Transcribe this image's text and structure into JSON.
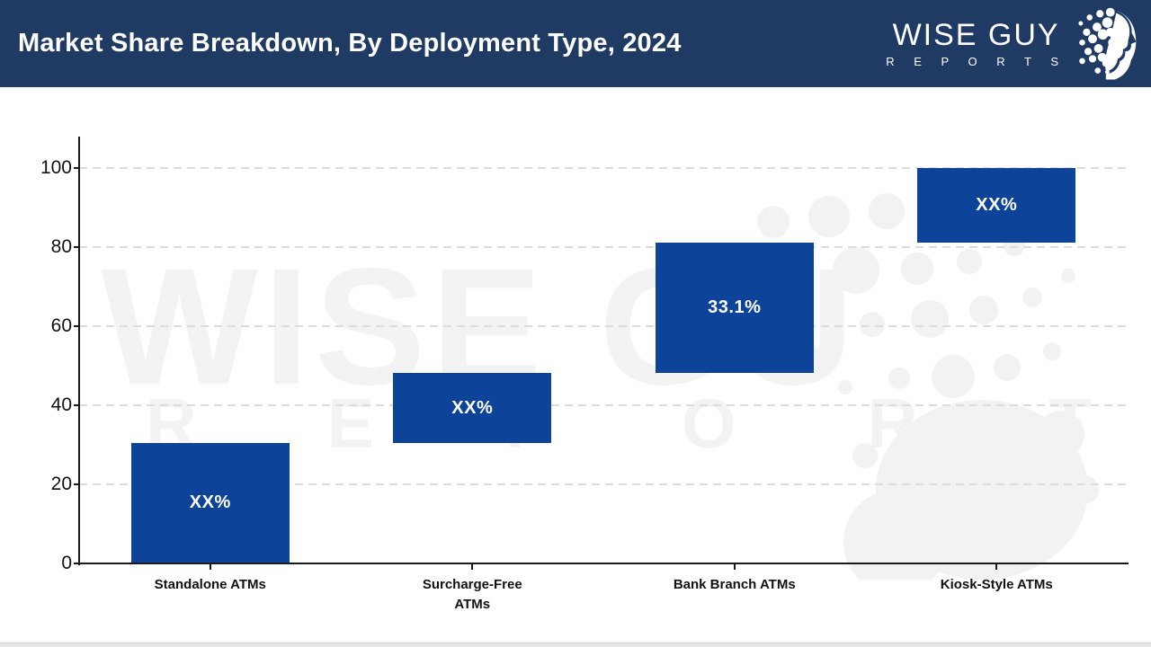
{
  "header": {
    "title": "Market Share Breakdown, By Deployment Type, 2024",
    "logo": {
      "line1": "WISE GUY",
      "line2": "R E P O R T S"
    }
  },
  "watermark": {
    "line1": "WISE GU",
    "line2": "R E P O R T S"
  },
  "colors": {
    "header_bg": "#1f3a63",
    "bar": "#0d4499",
    "grid": "#dcdcdc",
    "axis": "#1a1a1a",
    "watermark": "#f3f3f3",
    "bar_label": "#ffffff"
  },
  "chart_data": {
    "type": "bar",
    "subtype": "waterfall",
    "title": "Market Share Breakdown, By Deployment Type, 2024",
    "categories": [
      "Standalone ATMs",
      "Surcharge-Free ATMs",
      "Bank Branch ATMs",
      "Kiosk-Style ATMs"
    ],
    "segments": [
      {
        "category": "Standalone ATMs",
        "start": 0,
        "end": 30.5,
        "value_label": "XX%"
      },
      {
        "category": "Surcharge-Free ATMs",
        "start": 30.5,
        "end": 48.1,
        "value_label": "XX%"
      },
      {
        "category": "Bank Branch ATMs",
        "start": 48.1,
        "end": 81.2,
        "value_label": "33.1%"
      },
      {
        "category": "Kiosk-Style ATMs",
        "start": 81.2,
        "end": 100,
        "value_label": "XX%"
      }
    ],
    "yticks": [
      0,
      20,
      40,
      60,
      80,
      100
    ],
    "ylim": [
      0,
      107
    ],
    "xlabel": "",
    "ylabel": "",
    "grid": "horizontal-dashed",
    "legend": "none"
  }
}
